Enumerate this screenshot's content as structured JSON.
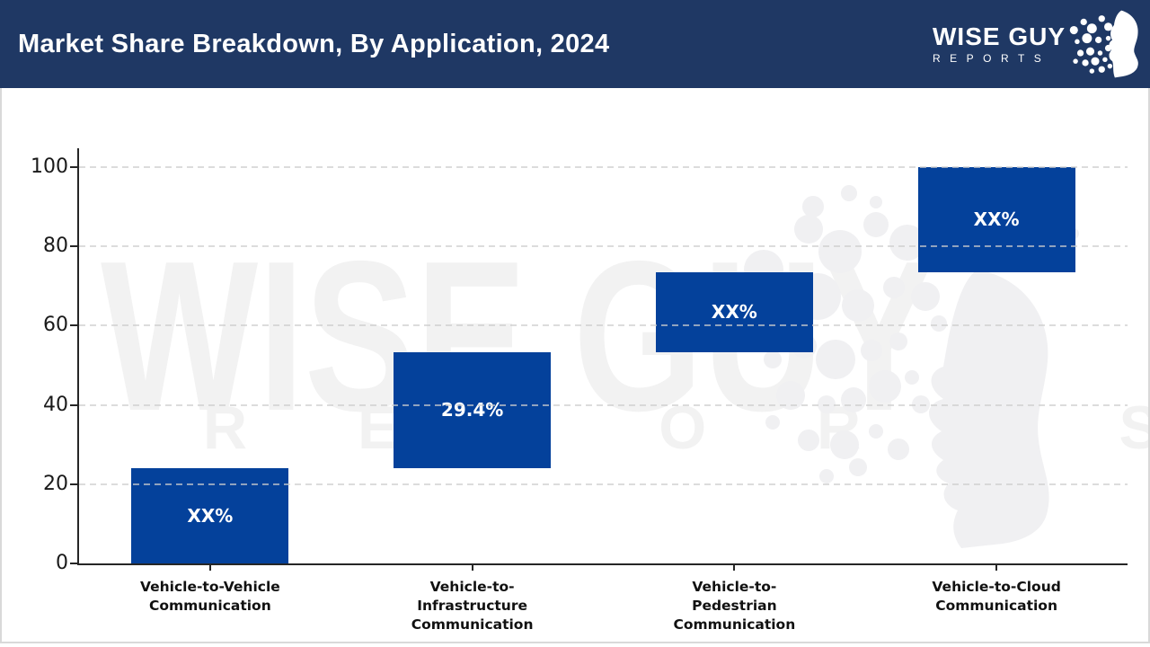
{
  "header": {
    "title": "Market Share Breakdown, By Application, 2024"
  },
  "logo": {
    "name": "WISE GUY",
    "subtitle": "REPORTS"
  },
  "watermark": {
    "name": "WISE GUY",
    "subtitle": "R E P O R T S"
  },
  "colors": {
    "header_bg": "#1f3864",
    "bar": "#04419b",
    "bar_label": "#ffffff",
    "grid": "#dcdcdc",
    "axis": "#262626",
    "watermark": "#f2f2f2"
  },
  "chart_data": {
    "type": "bar",
    "subtype": "waterfall",
    "title": "Market Share Breakdown, By Application, 2024",
    "categories": [
      "Vehicle-to-Vehicle Communication",
      "Vehicle-to-Infrastructure Communication",
      "Vehicle-to-Pedestrian Communication",
      "Vehicle-to-Cloud Communication"
    ],
    "category_lines": [
      [
        "Vehicle-to-Vehicle",
        "Communication"
      ],
      [
        "Vehicle-to-",
        "Infrastructure",
        "Communication"
      ],
      [
        "Vehicle-to-",
        "Pedestrian",
        "Communication"
      ],
      [
        "Vehicle-to-Cloud",
        "Communication"
      ]
    ],
    "segments": [
      {
        "category": "Vehicle-to-Vehicle Communication",
        "start": 0,
        "end": 24,
        "value": 24,
        "label": "XX%"
      },
      {
        "category": "Vehicle-to-Infrastructure Communication",
        "start": 24,
        "end": 53.4,
        "value": 29.4,
        "label": "29.4%"
      },
      {
        "category": "Vehicle-to-Pedestrian Communication",
        "start": 53.4,
        "end": 73.5,
        "value": 20.1,
        "label": "XX%"
      },
      {
        "category": "Vehicle-to-Cloud Communication",
        "start": 73.5,
        "end": 100,
        "value": 26.5,
        "label": "XX%"
      }
    ],
    "ylabel": "",
    "xlabel": "",
    "yticks": [
      0,
      20,
      40,
      60,
      80,
      100
    ],
    "ytick_labels": [
      "0",
      "20",
      "40",
      "60",
      "80",
      "100"
    ],
    "ylim": [
      0,
      105
    ],
    "grid": "horizontal-dashed",
    "legend": "none"
  }
}
